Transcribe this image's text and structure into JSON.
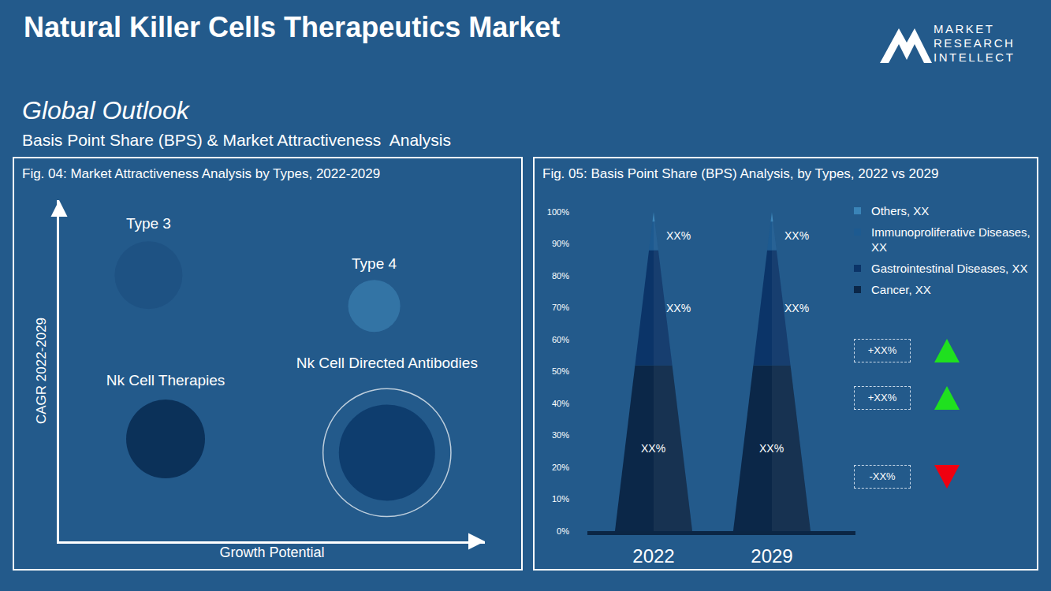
{
  "page": {
    "title": "Natural Killer Cells Therapeutics Market",
    "logo": [
      "MARKET",
      "RESEARCH",
      "INTELLECT"
    ],
    "heading": "Global Outlook",
    "subheading": "Basis Point Share (BPS) & Market Attractiveness  Analysis"
  },
  "chart_data": [
    {
      "type": "scatter",
      "title": "Fig. 04: Market Attractiveness Analysis by Types, 2022-2029",
      "x_label": "Growth Potential",
      "y_label": "CAGR 2022-2029",
      "xlim": [
        0,
        1
      ],
      "ylim": [
        0,
        1
      ],
      "xticks": [],
      "yticks": [],
      "tick_labels": false,
      "grid": false,
      "series": [
        {
          "name": "Type 3",
          "x": [
            0.21
          ],
          "y": [
            0.78
          ],
          "size": [
            86
          ],
          "color": "#1c4f80",
          "marker": "circle"
        },
        {
          "name": "Type 4",
          "x": [
            0.74
          ],
          "y": [
            0.69
          ],
          "size": [
            66
          ],
          "color": "#3a7fb0",
          "marker": "circle"
        },
        {
          "name": "Nk Cell Therapies",
          "x": [
            0.25
          ],
          "y": [
            0.3
          ],
          "size": [
            100
          ],
          "color": "#021f44",
          "marker": "circle"
        },
        {
          "name": "Nk Cell Directed Antibodies",
          "x": [
            0.77
          ],
          "y": [
            0.26
          ],
          "size": [
            122
          ],
          "color": "#053163",
          "marker": "circle-ring"
        }
      ]
    },
    {
      "type": "bar",
      "stacked": true,
      "data_labels": true,
      "legend": "right",
      "grid": false,
      "title": "Fig. 05: Basis Point Share (BPS) Analysis, by Types, 2022 vs 2029",
      "categories": [
        "2022",
        "2029"
      ],
      "ylim": [
        0,
        100
      ],
      "yticks": [
        {
          "value": 0,
          "label": "0%"
        },
        {
          "value": 10,
          "label": "10%"
        },
        {
          "value": 20,
          "label": "20%"
        },
        {
          "value": 30,
          "label": "30%"
        },
        {
          "value": 40,
          "label": "40%"
        },
        {
          "value": 50,
          "label": "50%"
        },
        {
          "value": 60,
          "label": "60%"
        },
        {
          "value": 70,
          "label": "70%"
        },
        {
          "value": 80,
          "label": "80%"
        },
        {
          "value": 90,
          "label": "90%"
        },
        {
          "value": 100,
          "label": "100%"
        }
      ],
      "series": [
        {
          "name": "Cancer, XX",
          "color": "#0b2748",
          "values": [
            52,
            52
          ],
          "value_labels": [
            "XX%",
            "XX%"
          ]
        },
        {
          "name": "Gastrointestinal Diseases, XX",
          "color": "#0b3468",
          "values": [
            36,
            36
          ],
          "value_labels": [
            "XX%",
            "XX%"
          ]
        },
        {
          "name": "Immunoproliferative Diseases, XX",
          "color": "#1d5a90",
          "values": [
            9,
            9
          ],
          "value_labels": [
            "XX%",
            "XX%"
          ]
        },
        {
          "name": "Others, XX",
          "color": "#3a84b8",
          "values": [
            3,
            3
          ],
          "value_labels": [
            null,
            null
          ]
        }
      ],
      "annotations": [
        "+XX%",
        "+XX%",
        "-XX%"
      ]
    }
  ]
}
